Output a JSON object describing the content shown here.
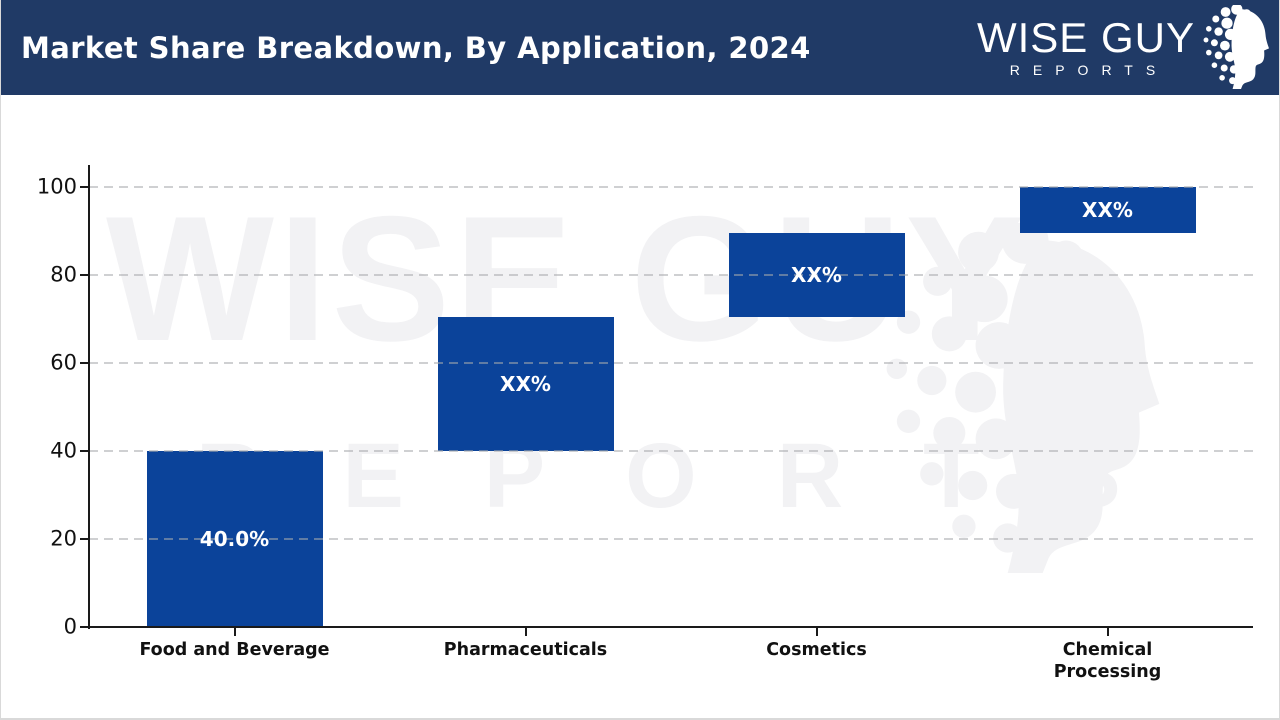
{
  "header": {
    "title": "Market Share Breakdown, By Application, 2024",
    "bg_color": "#203a66",
    "logo": {
      "line1": "WISE GUY",
      "line2": "REPORTS"
    }
  },
  "watermark": {
    "line1": "WISE GUY",
    "line2": "REPORTS"
  },
  "chart_data": {
    "type": "bar",
    "subtype": "waterfall",
    "title": "Market Share Breakdown, By Application, 2024",
    "xlabel": "",
    "ylabel": "",
    "ylim": [
      0,
      105
    ],
    "y_ticks": [
      0,
      20,
      40,
      60,
      80,
      100
    ],
    "grid": "horizontal dashed",
    "legend": "none",
    "bar_color": "#0b439a",
    "value_label_color": "#ffffff",
    "categories": [
      "Food and Beverage",
      "Pharmaceuticals",
      "Cosmetics",
      "Chemical Processing"
    ],
    "categories_display": [
      "Food and Beverage",
      "Pharmaceuticals",
      "Cosmetics",
      "Chemical\nProcessing"
    ],
    "segments": [
      {
        "category": "Food and Beverage",
        "start": 0,
        "end": 40,
        "value": 40.0,
        "label": "40.0%"
      },
      {
        "category": "Pharmaceuticals",
        "start": 40,
        "end": 70.5,
        "value": 30.5,
        "label": "XX%"
      },
      {
        "category": "Cosmetics",
        "start": 70.5,
        "end": 89.5,
        "value": 19.0,
        "label": "XX%"
      },
      {
        "category": "Chemical Processing",
        "start": 89.5,
        "end": 100,
        "value": 10.5,
        "label": "XX%"
      }
    ]
  }
}
